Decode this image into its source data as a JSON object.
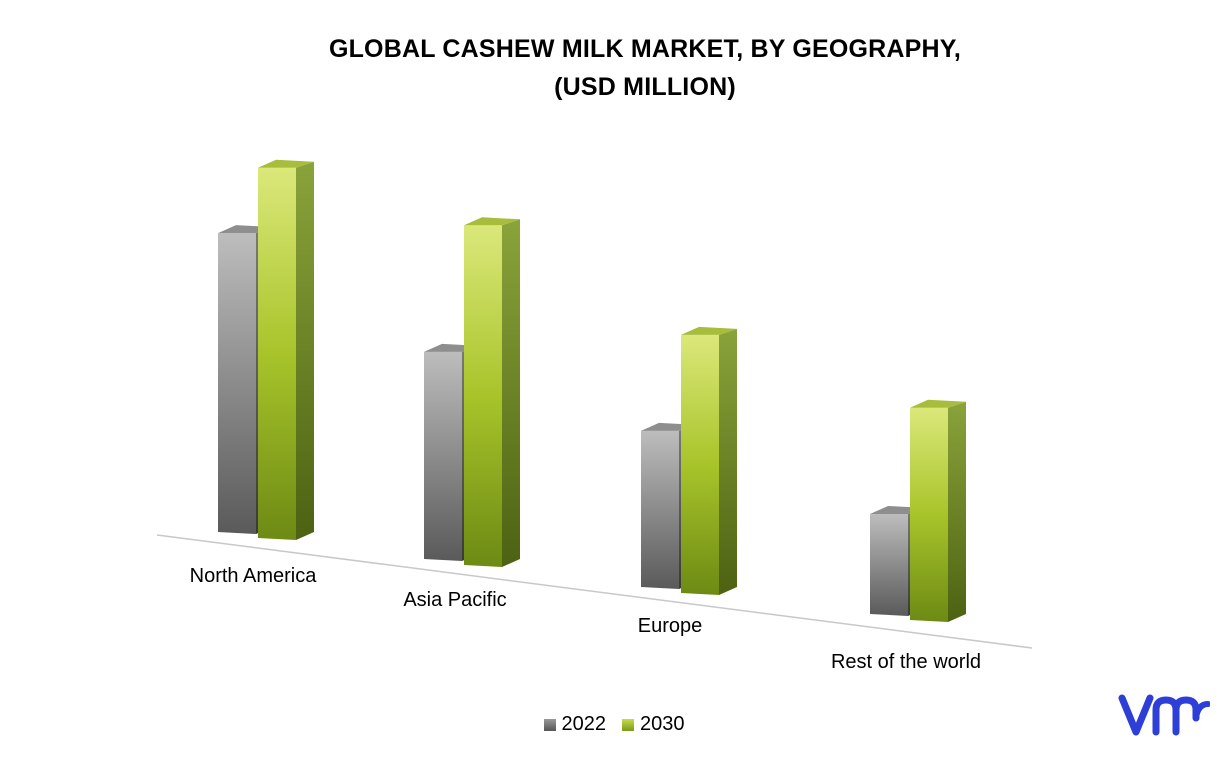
{
  "title": {
    "line1": "GLOBAL CASHEW MILK MARKET, BY GEOGRAPHY,",
    "line2": "(USD MILLION)"
  },
  "chart_data": {
    "type": "bar",
    "style": "3d-clustered-column",
    "categories": [
      "North America",
      "Asia Pacific",
      "Europe",
      "Rest of the world"
    ],
    "series": [
      {
        "name": "2022",
        "values": [
          295,
          205,
          155,
          100
        ],
        "color": "#8c8c8c"
      },
      {
        "name": "2030",
        "values": [
          365,
          335,
          255,
          210
        ],
        "color": "#a9c93a"
      }
    ],
    "ylim": [
      0,
      400
    ],
    "grid": false,
    "legend": "bottom",
    "xlabel": "",
    "ylabel": ""
  },
  "legend": {
    "items": [
      "2022",
      "2030"
    ]
  },
  "logo": {
    "name": "vmr-logo",
    "color": "#2d3fd6"
  }
}
